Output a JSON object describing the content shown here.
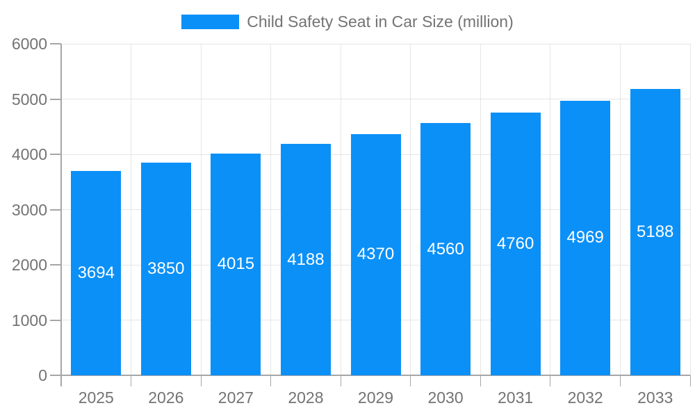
{
  "chart_data": {
    "type": "bar",
    "title": "Child Safety Seat in Car Size (million)",
    "categories": [
      "2025",
      "2026",
      "2027",
      "2028",
      "2029",
      "2030",
      "2031",
      "2032",
      "2033"
    ],
    "values": [
      3694,
      3850,
      4015,
      4188,
      4370,
      4560,
      4760,
      4969,
      5188
    ],
    "xlabel": "",
    "ylabel": "",
    "ylim": [
      0,
      6000
    ],
    "yticks": [
      0,
      1000,
      2000,
      3000,
      4000,
      5000,
      6000
    ],
    "grid": true,
    "legend_position": "top",
    "bar_labels_inside": true,
    "colors": {
      "bar": "#0b90f7",
      "bar_label": "#ffffff",
      "axis_text": "#737373",
      "grid_line": "#e6e6e6",
      "axis_line": "#a6a6a6",
      "legend_text": "#737373"
    }
  }
}
